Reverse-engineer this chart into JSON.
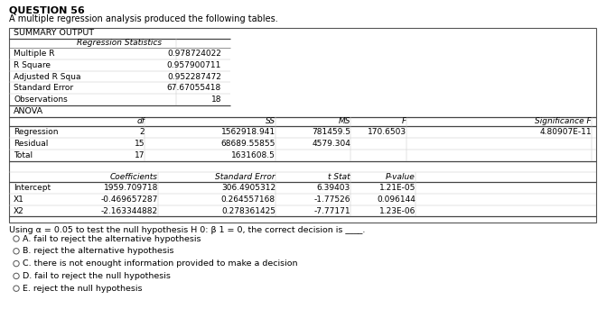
{
  "title": "QUESTION 56",
  "subtitle": "A multiple regression analysis produced the following tables.",
  "summary_output_label": "SUMMARY OUTPUT",
  "reg_stats_label": "Regression Statistics",
  "reg_stats": [
    [
      "Multiple R",
      "0.978724022"
    ],
    [
      "R Square",
      "0.957900711"
    ],
    [
      "Adjusted R Squa",
      "0.952287472"
    ],
    [
      "Standard Error",
      "67.67055418"
    ],
    [
      "Observations",
      "18"
    ]
  ],
  "anova_label": "ANOVA",
  "anova_col_headers": [
    "",
    "df",
    "SS",
    "MS",
    "F",
    "Significance F"
  ],
  "anova_rows": [
    [
      "Regression",
      "2",
      "1562918.941",
      "781459.5",
      "170.6503",
      "4.80907E-11"
    ],
    [
      "Residual",
      "15",
      "68689.55855",
      "4579.304",
      "",
      ""
    ],
    [
      "Total",
      "17",
      "1631608.5",
      "",
      "",
      ""
    ]
  ],
  "coeff_col_headers": [
    "",
    "Coefficients",
    "Standard Error",
    "t Stat",
    "P-value"
  ],
  "coeff_rows": [
    [
      "Intercept",
      "1959.709718",
      "306.4905312",
      "6.39403",
      "1.21E-05"
    ],
    [
      "X1",
      "-0.469657287",
      "0.264557168",
      "-1.77526",
      "0.096144"
    ],
    [
      "X2",
      "-2.163344882",
      "0.278361425",
      "-7.77171",
      "1.23E-06"
    ]
  ],
  "question_text": "Using α = 0.05 to test the null hypothesis H 0: β 1 = 0, the correct decision is ____.",
  "options": [
    "A. fail to reject the alternative hypothesis",
    "B. reject the alternative hypothesis",
    "C. there is not enought information provided to make a decision",
    "D. fail to reject the null hypothesis",
    "E. reject the null hypothesis"
  ],
  "bg_color": "#ffffff",
  "grid_color": "#c8c8c8",
  "box_edge_color": "#888888"
}
